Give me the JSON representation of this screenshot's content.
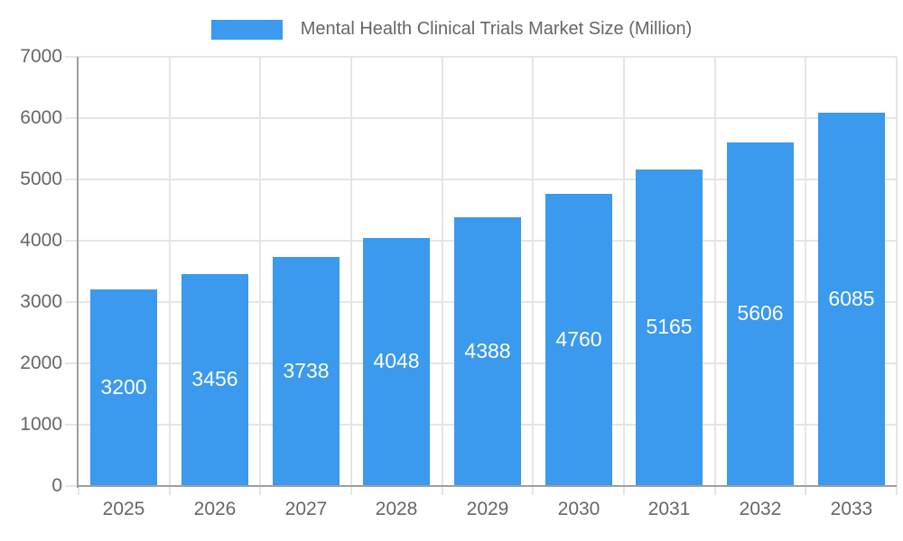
{
  "chart_data": {
    "type": "bar",
    "title": "Mental Health Clinical Trials Market Size (Million)",
    "legend_position": "top",
    "categories": [
      "2025",
      "2026",
      "2027",
      "2028",
      "2029",
      "2030",
      "2031",
      "2032",
      "2033"
    ],
    "values": [
      3200,
      3456,
      3738,
      4048,
      4388,
      4760,
      5165,
      5606,
      6085
    ],
    "xlabel": "",
    "ylabel": "",
    "ylim": [
      0,
      7000
    ],
    "yticks": [
      0,
      1000,
      2000,
      3000,
      4000,
      5000,
      6000,
      7000
    ],
    "grid": true,
    "bar_color": "#3b99ee",
    "grid_color": "#e5e5e5",
    "axis_line_color": "#9e9e9e",
    "axis_text_color": "#666666",
    "value_label_color": "#ffffff",
    "background_color": "#ffffff"
  }
}
